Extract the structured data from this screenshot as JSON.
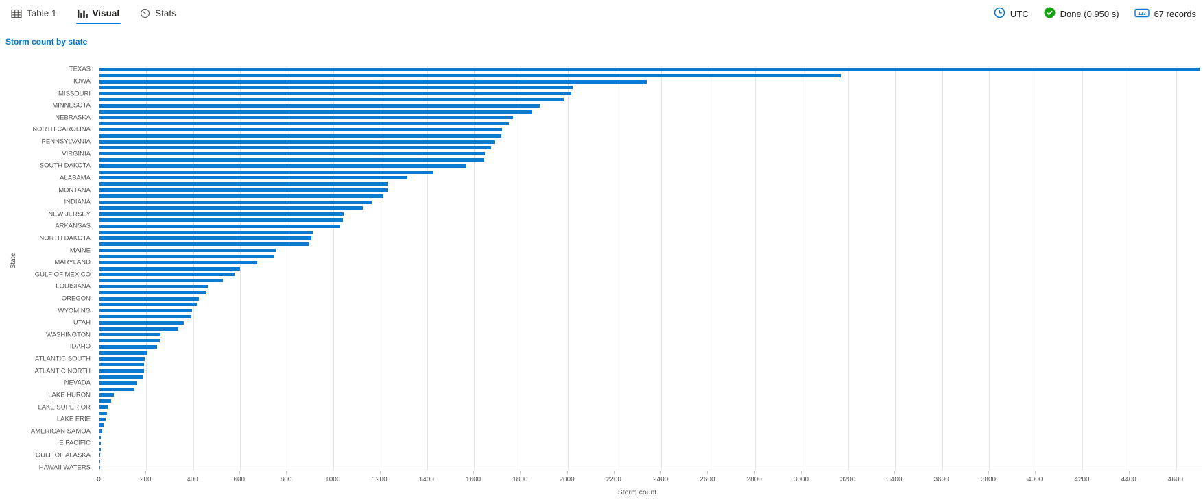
{
  "tabs": {
    "table": {
      "label": "Table 1"
    },
    "visual": {
      "label": "Visual"
    },
    "stats": {
      "label": "Stats"
    }
  },
  "statusbar": {
    "timezone": "UTC",
    "done": "Done (0.950 s)",
    "records": "67 records",
    "records_icon_text": "123"
  },
  "colors": {
    "accent": "#0078d4",
    "bar": "#0b7ad1",
    "done_green": "#13a10e",
    "gridline": "#e4e4e4",
    "axis_text": "#565656"
  },
  "chart_data": {
    "type": "bar",
    "orientation": "horizontal",
    "title": "Storm count by state",
    "xlabel": "Storm count",
    "ylabel": "State",
    "xlim": [
      0,
      4600
    ],
    "xtick_step": 200,
    "grid": true,
    "legend": "none",
    "axis_label_note": "only every other bar is labeled on the y-axis",
    "bars": [
      {
        "label": "TEXAS",
        "value": 4701
      },
      {
        "label": "",
        "value": 3166
      },
      {
        "label": "IOWA",
        "value": 2337
      },
      {
        "label": "",
        "value": 2022
      },
      {
        "label": "MISSOURI",
        "value": 2016
      },
      {
        "label": "",
        "value": 1983
      },
      {
        "label": "MINNESOTA",
        "value": 1881
      },
      {
        "label": "",
        "value": 1850
      },
      {
        "label": "NEBRASKA",
        "value": 1766
      },
      {
        "label": "",
        "value": 1750
      },
      {
        "label": "NORTH CAROLINA",
        "value": 1721
      },
      {
        "label": "",
        "value": 1716
      },
      {
        "label": "PENNSYLVANIA",
        "value": 1687
      },
      {
        "label": "",
        "value": 1674
      },
      {
        "label": "VIRGINIA",
        "value": 1647
      },
      {
        "label": "",
        "value": 1643
      },
      {
        "label": "SOUTH DAKOTA",
        "value": 1567
      },
      {
        "label": "",
        "value": 1426
      },
      {
        "label": "ALABAMA",
        "value": 1315
      },
      {
        "label": "",
        "value": 1232
      },
      {
        "label": "MONTANA",
        "value": 1230
      },
      {
        "label": "",
        "value": 1214
      },
      {
        "label": "INDIANA",
        "value": 1164
      },
      {
        "label": "",
        "value": 1124
      },
      {
        "label": "NEW JERSEY",
        "value": 1044
      },
      {
        "label": "",
        "value": 1041
      },
      {
        "label": "ARKANSAS",
        "value": 1028
      },
      {
        "label": "",
        "value": 910
      },
      {
        "label": "NORTH DAKOTA",
        "value": 905
      },
      {
        "label": "",
        "value": 898
      },
      {
        "label": "MAINE",
        "value": 753
      },
      {
        "label": "",
        "value": 748
      },
      {
        "label": "MARYLAND",
        "value": 674
      },
      {
        "label": "",
        "value": 600
      },
      {
        "label": "GULF OF MEXICO",
        "value": 577
      },
      {
        "label": "",
        "value": 526
      },
      {
        "label": "LOUISIANA",
        "value": 463
      },
      {
        "label": "",
        "value": 455
      },
      {
        "label": "OREGON",
        "value": 424
      },
      {
        "label": "",
        "value": 416
      },
      {
        "label": "WYOMING",
        "value": 396
      },
      {
        "label": "",
        "value": 393
      },
      {
        "label": "UTAH",
        "value": 360
      },
      {
        "label": "",
        "value": 338
      },
      {
        "label": "WASHINGTON",
        "value": 262
      },
      {
        "label": "",
        "value": 257
      },
      {
        "label": "IDAHO",
        "value": 247
      },
      {
        "label": "",
        "value": 201
      },
      {
        "label": "ATLANTIC SOUTH",
        "value": 194
      },
      {
        "label": "",
        "value": 191
      },
      {
        "label": "ATLANTIC NORTH",
        "value": 189
      },
      {
        "label": "",
        "value": 184
      },
      {
        "label": "NEVADA",
        "value": 162
      },
      {
        "label": "",
        "value": 149
      },
      {
        "label": "LAKE HURON",
        "value": 61
      },
      {
        "label": "",
        "value": 50
      },
      {
        "label": "LAKE SUPERIOR",
        "value": 36
      },
      {
        "label": "",
        "value": 31
      },
      {
        "label": "LAKE ERIE",
        "value": 25
      },
      {
        "label": "",
        "value": 19
      },
      {
        "label": "AMERICAN SAMOA",
        "value": 13
      },
      {
        "label": "",
        "value": 7
      },
      {
        "label": "E PACIFIC",
        "value": 6
      },
      {
        "label": "",
        "value": 5
      },
      {
        "label": "GULF OF ALASKA",
        "value": 3
      },
      {
        "label": "",
        "value": 3
      },
      {
        "label": "HAWAII WATERS",
        "value": 2
      }
    ]
  }
}
